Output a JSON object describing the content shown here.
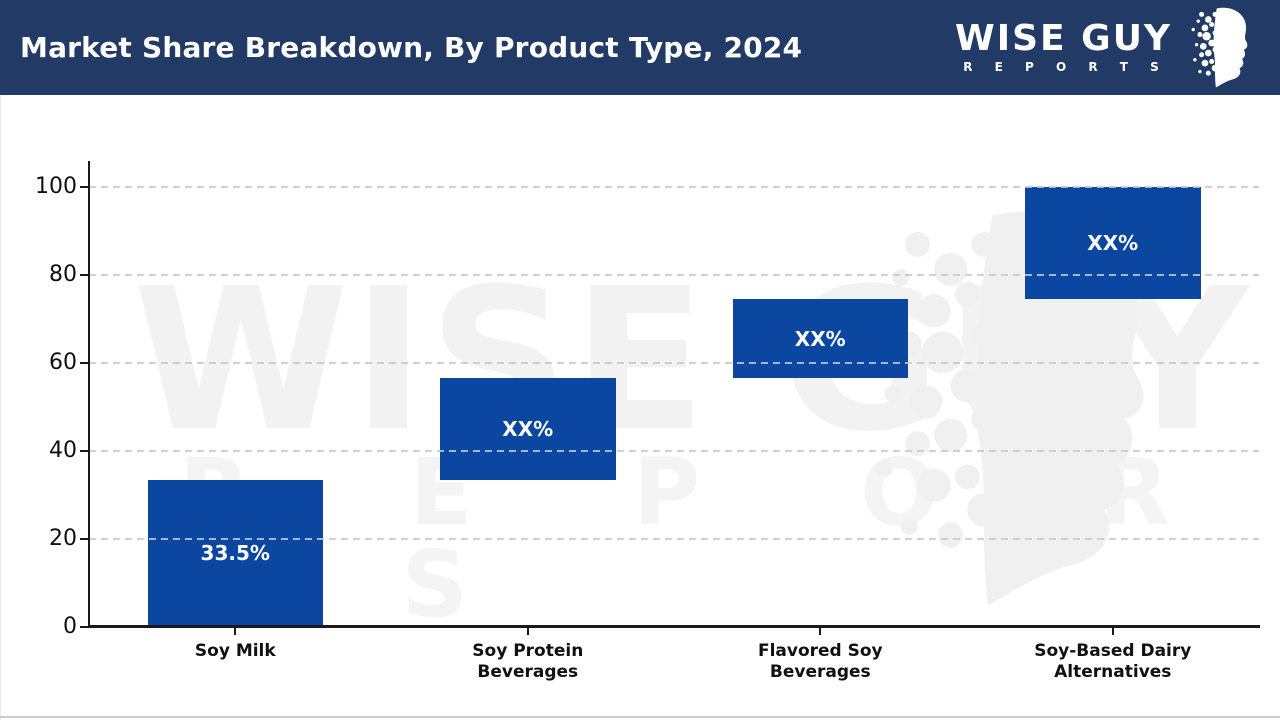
{
  "header": {
    "title": "Market Share Breakdown, By Product Type, 2024",
    "bg_color": "#213a66",
    "brand": {
      "line1": "WISE GUY",
      "line2": "R E P O R T S"
    }
  },
  "watermark": {
    "line1": "WISE GUY",
    "line2": "R E P O R T S"
  },
  "chart_data": {
    "type": "bar",
    "subtype": "waterfall",
    "title": "Market Share Breakdown, By Product Type, 2024",
    "xlabel": "",
    "ylabel": "",
    "ylim": [
      0,
      100
    ],
    "yticks": [
      0,
      20,
      40,
      60,
      80,
      100
    ],
    "grid": true,
    "legend": false,
    "categories": [
      "Soy Milk",
      "Soy Protein Beverages",
      "Flavored Soy Beverages",
      "Soy-Based Dairy Alternatives"
    ],
    "tick_lines": [
      [
        "Soy Milk"
      ],
      [
        "Soy Protein",
        "Beverages"
      ],
      [
        "Flavored Soy",
        "Beverages"
      ],
      [
        "Soy-Based Dairy",
        "Alternatives"
      ]
    ],
    "segments": [
      {
        "category": "Soy Milk",
        "start": 0,
        "end": 33.5,
        "label": "33.5%"
      },
      {
        "category": "Soy Protein Beverages",
        "start": 33.5,
        "end": 56.5,
        "label": "XX%"
      },
      {
        "category": "Flavored Soy Beverages",
        "start": 56.5,
        "end": 74.5,
        "label": "XX%"
      },
      {
        "category": "Soy-Based Dairy Alternatives",
        "start": 74.5,
        "end": 100,
        "label": "XX%"
      }
    ],
    "bar_color": "#0b47a0",
    "bar_label_color": "#ffffff",
    "grid_color": "#d9d9d9",
    "axis_color": "#1a1a1a"
  }
}
